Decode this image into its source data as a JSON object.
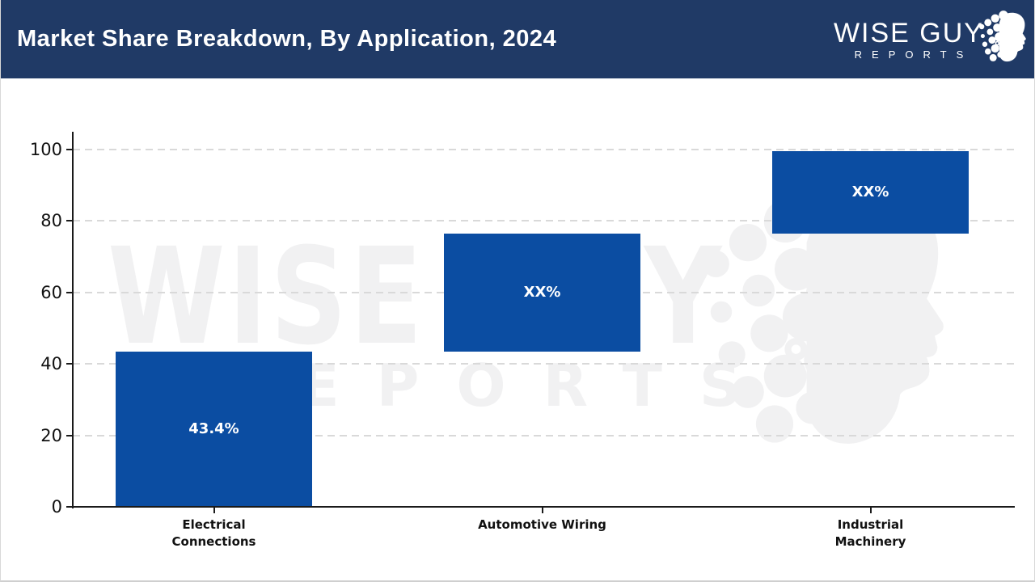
{
  "header": {
    "title": "Market Share Breakdown, By Application, 2024",
    "logo": {
      "line1": "WISE GUY",
      "line2": "REPORTS"
    }
  },
  "watermark": {
    "line1": "WISE GUY",
    "line2": "REPORTS"
  },
  "chart_data": {
    "type": "bar",
    "subtype": "floating-cascade-bars",
    "title": "Market Share Breakdown, By Application, 2024",
    "categories": [
      "Electrical\nConnections",
      "Automotive Wiring",
      "Industrial\nMachinery"
    ],
    "bars": [
      {
        "category": "Electrical Connections",
        "start": 0,
        "end": 43.4,
        "label": "43.4%"
      },
      {
        "category": "Automotive Wiring",
        "start": 43.4,
        "end": 76.4,
        "label": "XX%"
      },
      {
        "category": "Industrial Machinery",
        "start": 76.4,
        "end": 99.6,
        "label": "XX%"
      }
    ],
    "xlabel": "",
    "ylabel": "",
    "ylim": [
      0,
      105
    ],
    "yticks": [
      0,
      20,
      40,
      60,
      80,
      100
    ],
    "grid": "horizontal-dashed",
    "legend": "none",
    "colors": {
      "bar": "#0B4DA2",
      "bar_label": "#FFFFFF",
      "header_bg": "#203A66",
      "grid": "#D9D9D9",
      "axis": "#1A1A1A",
      "tick_label": "#111111",
      "watermark": "#F1F1F2"
    }
  }
}
